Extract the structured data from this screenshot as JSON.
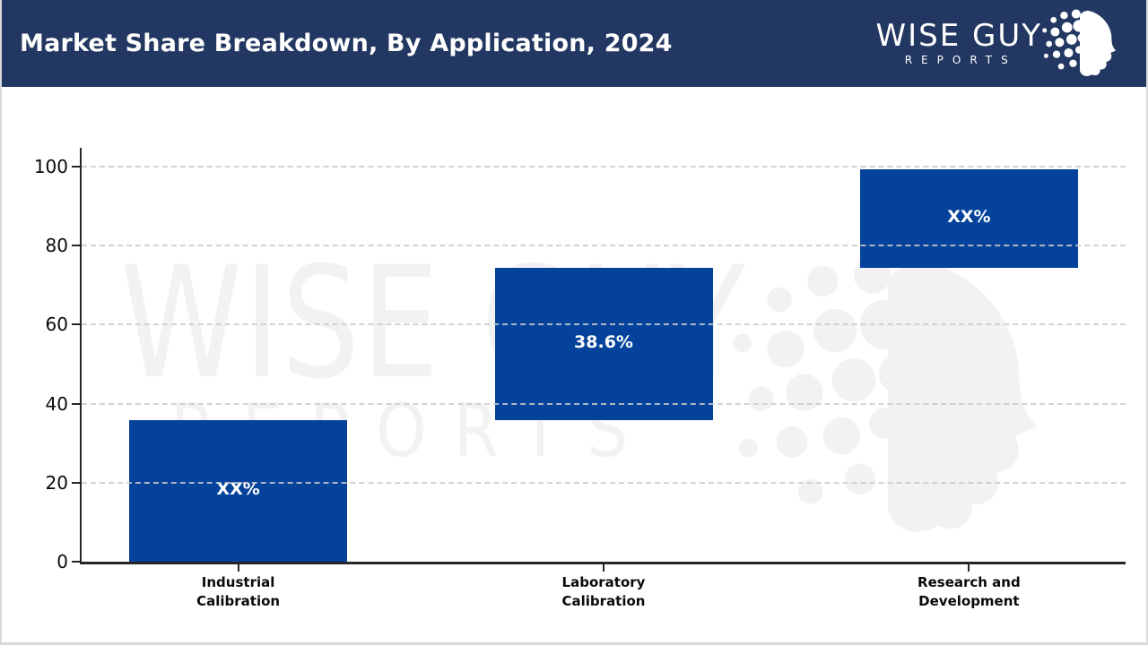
{
  "header": {
    "title": "Market Share Breakdown, By Application, 2024",
    "logo": {
      "line1": "WISE GUY",
      "line2": "REPORTS"
    }
  },
  "watermark": {
    "line1": "WISE GUY",
    "line2": "REPORTS"
  },
  "colors": {
    "header_bg": "#223761",
    "bar": "#05429b",
    "bar_label_text": "#ffffff",
    "gridline": "#cbcbcb",
    "axis": "#262626",
    "tick_text": "#0a0a0a",
    "title_text": "#ffffff",
    "watermark": "#f2f2f4",
    "page_border": "#d9d9d9"
  },
  "chart_data": {
    "type": "bar",
    "subtype": "floating-waterfall-segments",
    "title": "Market Share Breakdown, By Application, 2024",
    "xlabel": "",
    "ylabel": "",
    "ylim": [
      0,
      104.8
    ],
    "yticks": [
      0,
      20,
      40,
      60,
      80,
      100
    ],
    "grid": "horizontal-dashed",
    "legend": "none",
    "categories": [
      {
        "lines": [
          "Industrial",
          "Calibration"
        ]
      },
      {
        "lines": [
          "Laboratory",
          "Calibration"
        ]
      },
      {
        "lines": [
          "Research and",
          "Development"
        ]
      }
    ],
    "segments": [
      {
        "category": "Industrial Calibration",
        "start": 0,
        "end": 35.8,
        "label": "XX%"
      },
      {
        "category": "Laboratory Calibration",
        "start": 35.8,
        "end": 74.4,
        "label": "38.6%"
      },
      {
        "category": "Research and Development",
        "start": 74.4,
        "end": 99.4,
        "label": "XX%"
      }
    ]
  }
}
